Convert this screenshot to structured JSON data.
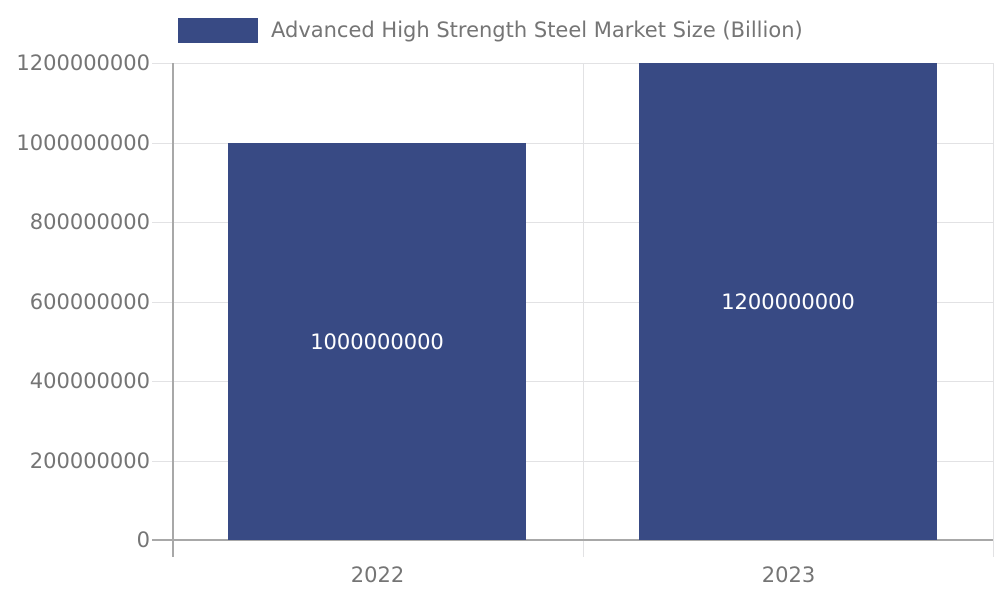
{
  "chart_data": {
    "type": "bar",
    "title": "",
    "legend_label": "Advanced High Strength Steel Market Size (Billion)",
    "legend_position": "top",
    "categories": [
      "2022",
      "2023"
    ],
    "values": [
      1000000000,
      1200000000
    ],
    "bar_value_labels": [
      "1000000000",
      "1200000000"
    ],
    "y_ticks": {
      "values": [
        0,
        200000000,
        400000000,
        600000000,
        800000000,
        1000000000,
        1200000000
      ],
      "labels": [
        "0",
        "200000000",
        "400000000",
        "600000000",
        "800000000",
        "1000000000",
        "1200000000"
      ]
    },
    "ylim": [
      0,
      1200000000
    ],
    "grid": true,
    "colors": {
      "bar": "#384a84",
      "axis": "#a8a8a8",
      "gridline": "#e2e2e4",
      "tick_text": "#757575",
      "bar_label_text": "#ffffff",
      "background": "#ffffff"
    }
  }
}
